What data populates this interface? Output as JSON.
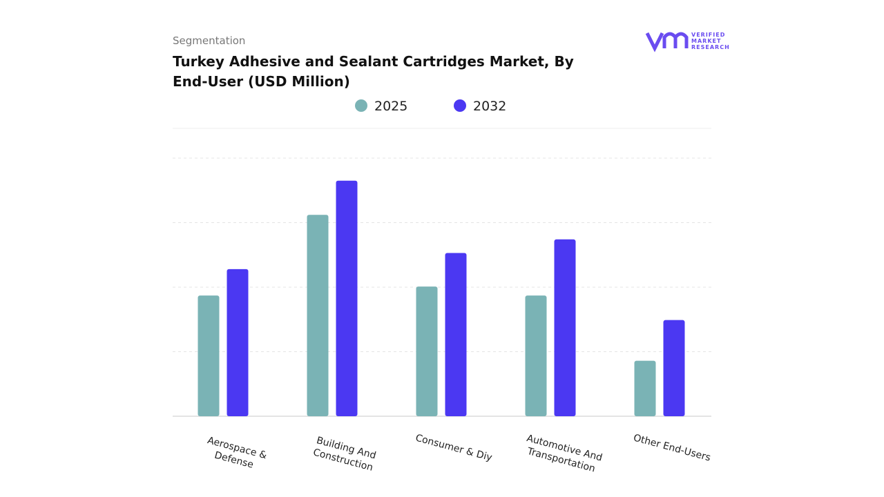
{
  "chart_data": {
    "type": "bar",
    "subtitle": "Segmentation",
    "title": "Turkey Adhesive and Sealant Cartridges Market, By End-User (USD Million)",
    "categories": [
      "Aerospace & Defense",
      "Building And Construction",
      "Consumer & Diy",
      "Automotive And Transportation",
      "Other End-Users"
    ],
    "series": [
      {
        "name": "2025",
        "color": "#7ab3b5",
        "values": [
          1.87,
          3.12,
          2.01,
          1.87,
          0.86
        ]
      },
      {
        "name": "2032",
        "color": "#4b38f2",
        "values": [
          2.28,
          3.65,
          2.53,
          2.74,
          1.49
        ]
      }
    ],
    "ylim": [
      0,
      4
    ],
    "grid": true
  },
  "logo": {
    "lines": [
      "VERIFIED",
      "MARKET",
      "RESEARCH"
    ]
  }
}
